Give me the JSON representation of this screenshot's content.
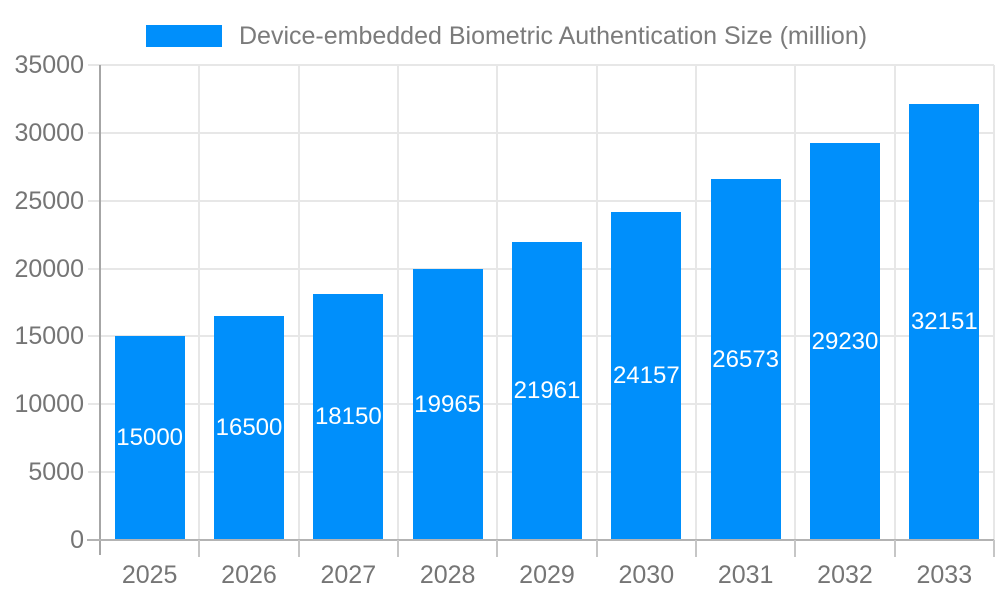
{
  "legend": {
    "label": "Device-embedded Biometric Authentication Size (million)"
  },
  "chart_data": {
    "type": "bar",
    "title": "Device-embedded Biometric Authentication Size (million)",
    "categories": [
      "2025",
      "2026",
      "2027",
      "2028",
      "2029",
      "2030",
      "2031",
      "2032",
      "2033"
    ],
    "values": [
      15000,
      16500,
      18150,
      19965,
      21961,
      24157,
      26573,
      29230,
      32151
    ],
    "data_labels": [
      "15000",
      "16500",
      "18150",
      "19965",
      "21961",
      "24157",
      "26573",
      "29230",
      "32151"
    ],
    "xlabel": "",
    "ylabel": "",
    "ylim": [
      0,
      35000
    ],
    "ytick_step": 5000,
    "ytick_labels": [
      "0",
      "5000",
      "10000",
      "15000",
      "20000",
      "25000",
      "30000",
      "35000"
    ],
    "grid": true,
    "legend_position": "top",
    "colors": {
      "bar": "#008FFB",
      "bar_value_label": "#ffffff",
      "gridline": "#e7e7e7",
      "axis_line": "#a6a6a6",
      "baseline": "#b3b3b3",
      "x_tick": "#c6c6c6",
      "tick_label": "#757575",
      "legend_text": "#7b7b7b",
      "background": "#ffffff"
    }
  }
}
